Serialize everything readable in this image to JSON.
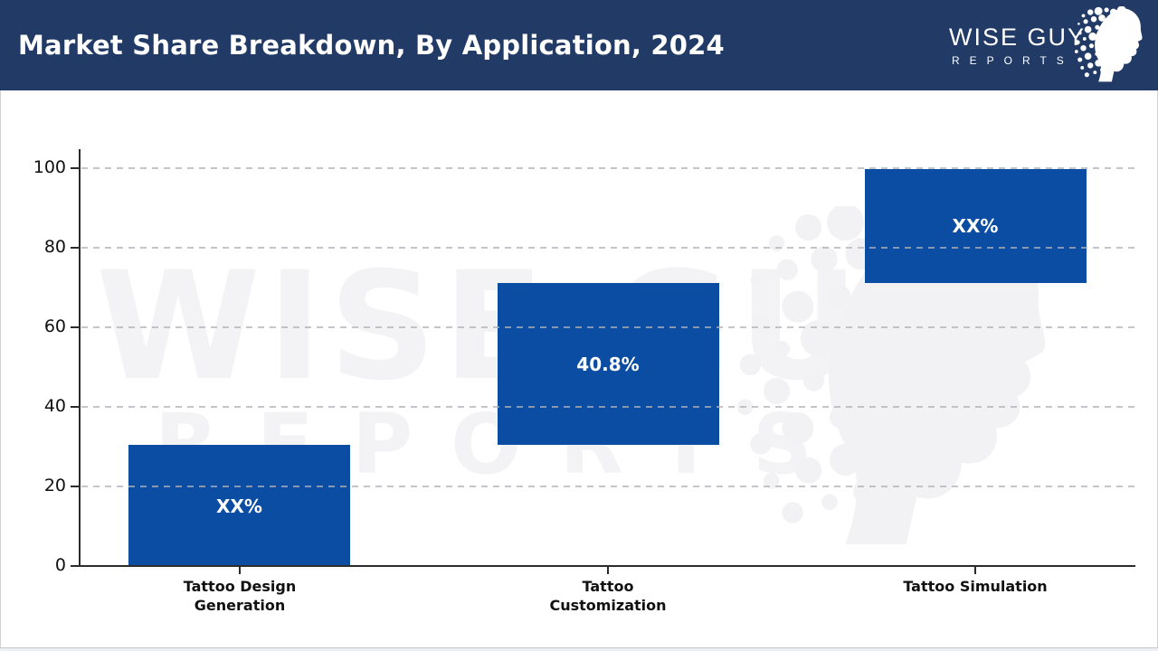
{
  "header": {
    "title": "Market Share Breakdown, By Application, 2024",
    "logo": {
      "line1": "WISE GUY",
      "line2": "REPORTS"
    }
  },
  "watermark": {
    "line1": "WISE GUY",
    "line2": "REPORTS"
  },
  "chart_data": {
    "type": "bar",
    "subtype": "floating-waterfall",
    "title": "Market Share Breakdown, By Application, 2024",
    "unit": "%",
    "categories": [
      "Tattoo Design Generation",
      "Tattoo Customization",
      "Tattoo Simulation"
    ],
    "categories_display": [
      "Tattoo Design\nGeneration",
      "Tattoo\nCustomization",
      "Tattoo Simulation"
    ],
    "series": [
      {
        "name": "Market Share",
        "segments": [
          {
            "category": "Tattoo Design Generation",
            "start": 0,
            "end": 30.6,
            "label": "XX%"
          },
          {
            "category": "Tattoo Customization",
            "start": 30.6,
            "end": 71.4,
            "label": "40.8%"
          },
          {
            "category": "Tattoo Simulation",
            "start": 71.4,
            "end": 99.9,
            "label": "XX%"
          }
        ]
      }
    ],
    "values": [
      30.6,
      40.8,
      28.5
    ],
    "ylim": [
      0,
      100
    ],
    "yticks": [
      0,
      20,
      40,
      60,
      80,
      100
    ],
    "xlabel": "",
    "ylabel": "",
    "grid": "horizontal-dashed",
    "legend": "none",
    "bar_color": "#0B4DA2",
    "bar_label_color": "#FFFFFF"
  },
  "colors": {
    "header_bg": "#213A66",
    "bar": "#0B4DA2",
    "panel_bg": "#FFFFFF",
    "gridline": "#AFB2B9",
    "axis": "#2B2B2B",
    "watermark": "#F3F3F6",
    "footer_strip": "#ECF0F6"
  }
}
